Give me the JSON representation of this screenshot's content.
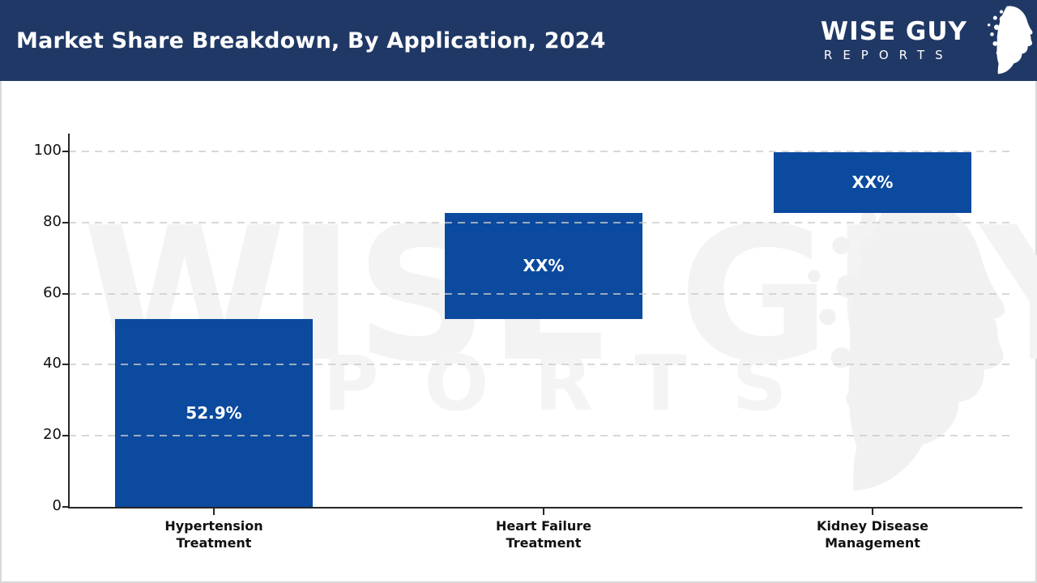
{
  "header": {
    "title": "Market Share Breakdown, By Application, 2024",
    "bg_color": "#203865",
    "logo": {
      "line1": "WISE GUY",
      "line2": "REPORTS"
    }
  },
  "watermark": {
    "line1": "WISE GUY",
    "line2": "REPORTS"
  },
  "chart_data": {
    "type": "bar",
    "subtype": "floating-segment-waterfall",
    "title": "Market Share Breakdown, By Application, 2024",
    "xlabel": "",
    "ylabel": "",
    "ylim": [
      0,
      105
    ],
    "yticks": [
      0,
      20,
      40,
      60,
      80,
      100
    ],
    "grid": "horizontal-dashed-lightgray",
    "legend": "none",
    "bar_color": "#0b4a9e",
    "label_color": "#ffffff",
    "categories": [
      "Hypertension\nTreatment",
      "Heart Failure\nTreatment",
      "Kidney Disease\nManagement"
    ],
    "segments": [
      {
        "category": "Hypertension\nTreatment",
        "start": 0,
        "end": 52.9,
        "label": "52.9%"
      },
      {
        "category": "Heart Failure\nTreatment",
        "start": 52.9,
        "end": 82.7,
        "label": "XX%"
      },
      {
        "category": "Kidney Disease\nManagement",
        "start": 82.7,
        "end": 99.8,
        "label": "XX%"
      }
    ]
  }
}
